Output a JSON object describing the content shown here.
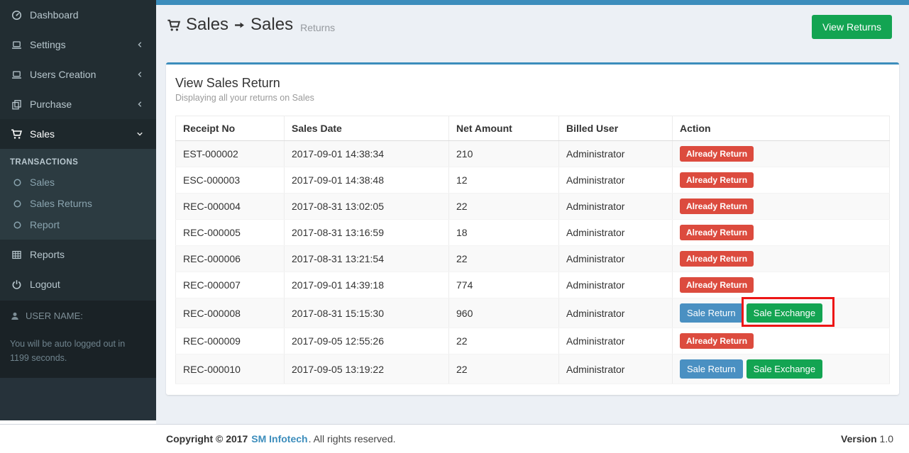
{
  "colors": {
    "accent": "#3c8dbc",
    "success": "#13a452",
    "danger": "#dc4b3e",
    "primary-btn": "#4a90c2",
    "annotation": "#ed1515",
    "sidebar-bg": "#222d32",
    "sidebar-active": "#1e282c",
    "submenu-bg": "#2c3b41",
    "userblock-bg": "#1a2226",
    "sidebar-bottom": "#26323a",
    "content-bg": "#ecf0f5"
  },
  "sidebar": {
    "items": [
      {
        "id": "dashboard",
        "label": "Dashboard",
        "icon": "dashboard-icon",
        "chevron": null,
        "active": false
      },
      {
        "id": "settings",
        "label": "Settings",
        "icon": "laptop-icon",
        "chevron": "left",
        "active": false
      },
      {
        "id": "users-creation",
        "label": "Users Creation",
        "icon": "laptop-icon",
        "chevron": "left",
        "active": false
      },
      {
        "id": "purchase",
        "label": "Purchase",
        "icon": "copy-icon",
        "chevron": "left",
        "active": false
      },
      {
        "id": "sales",
        "label": "Sales",
        "icon": "cart-icon",
        "chevron": "down",
        "active": true
      }
    ],
    "submenu": {
      "header": "TRANSACTIONS",
      "items": [
        {
          "id": "sales",
          "label": "Sales"
        },
        {
          "id": "sales-returns",
          "label": "Sales Returns"
        },
        {
          "id": "report",
          "label": "Report"
        }
      ]
    },
    "items_after": [
      {
        "id": "reports",
        "label": "Reports",
        "icon": "table-icon",
        "chevron": null,
        "active": false
      },
      {
        "id": "logout",
        "label": "Logout",
        "icon": "power-icon",
        "chevron": null,
        "active": false
      }
    ],
    "user": {
      "label": "USER NAME:",
      "note": "You will be auto logged out in 1199 seconds."
    }
  },
  "header": {
    "title_primary": "Sales",
    "title_secondary": "Sales",
    "title_small": "Returns",
    "view_returns_label": "View Returns"
  },
  "panel": {
    "title": "View Sales Return",
    "subtitle": "Displaying all your returns on Sales",
    "table": {
      "columns": [
        "Receipt No",
        "Sales Date",
        "Net Amount",
        "Billed User",
        "Action"
      ],
      "rows": [
        {
          "receipt": "EST-000002",
          "date": "2017-09-01 14:38:34",
          "amount": "210",
          "user": "Administrator",
          "actions": [
            {
              "label": "Already Return",
              "style": "danger"
            }
          ]
        },
        {
          "receipt": "ESC-000003",
          "date": "2017-09-01 14:38:48",
          "amount": "12",
          "user": "Administrator",
          "actions": [
            {
              "label": "Already Return",
              "style": "danger"
            }
          ]
        },
        {
          "receipt": "REC-000004",
          "date": "2017-08-31 13:02:05",
          "amount": "22",
          "user": "Administrator",
          "actions": [
            {
              "label": "Already Return",
              "style": "danger"
            }
          ]
        },
        {
          "receipt": "REC-000005",
          "date": "2017-08-31 13:16:59",
          "amount": "18",
          "user": "Administrator",
          "actions": [
            {
              "label": "Already Return",
              "style": "danger"
            }
          ]
        },
        {
          "receipt": "REC-000006",
          "date": "2017-08-31 13:21:54",
          "amount": "22",
          "user": "Administrator",
          "actions": [
            {
              "label": "Already Return",
              "style": "danger"
            }
          ]
        },
        {
          "receipt": "REC-000007",
          "date": "2017-09-01 14:39:18",
          "amount": "774",
          "user": "Administrator",
          "actions": [
            {
              "label": "Already Return",
              "style": "danger"
            }
          ]
        },
        {
          "receipt": "REC-000008",
          "date": "2017-08-31 15:15:30",
          "amount": "960",
          "user": "Administrator",
          "actions": [
            {
              "label": "Sale Return",
              "style": "primary"
            },
            {
              "label": "Sale Exchange",
              "style": "success",
              "highlighted": true
            }
          ]
        },
        {
          "receipt": "REC-000009",
          "date": "2017-09-05 12:55:26",
          "amount": "22",
          "user": "Administrator",
          "actions": [
            {
              "label": "Already Return",
              "style": "danger"
            }
          ]
        },
        {
          "receipt": "REC-000010",
          "date": "2017-09-05 13:19:22",
          "amount": "22",
          "user": "Administrator",
          "actions": [
            {
              "label": "Sale Return",
              "style": "primary"
            },
            {
              "label": "Sale Exchange",
              "style": "success"
            }
          ]
        }
      ]
    }
  },
  "footer": {
    "copyright_bold": "Copyright © 2017",
    "company": "SM Infotech",
    "copyright_rest": ". All rights reserved.",
    "version_label": "Version",
    "version_value": "1.0"
  }
}
